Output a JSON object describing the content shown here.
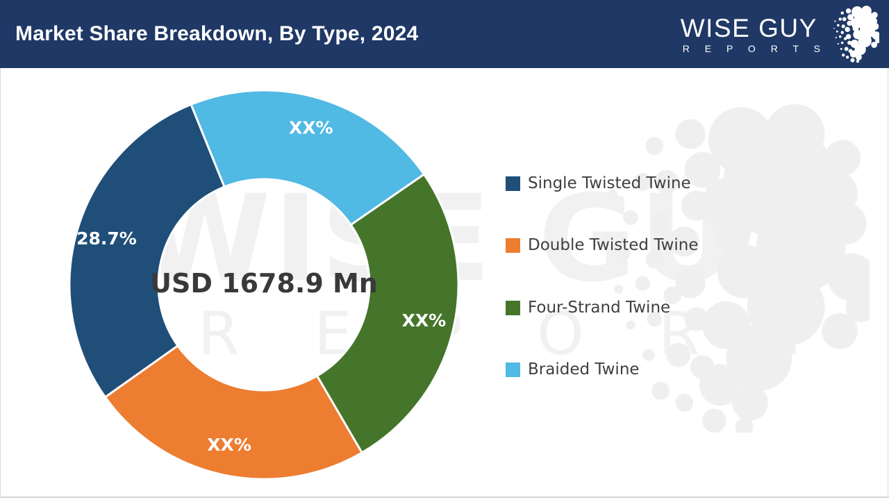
{
  "header": {
    "title": "Market Share Breakdown, By Type, 2024",
    "bg_color": "#1f3865",
    "logo": {
      "line1": "WISE GUY",
      "line2": "R E P O R T S"
    }
  },
  "watermark": {
    "line1": "WISE GUY",
    "line2": "R E P O R T S",
    "text_color": "#f1f1f1",
    "face_color": "#efefef"
  },
  "chart_data": {
    "type": "pie",
    "donut": true,
    "center_label": "USD 1678.9 Mn",
    "start_angle_deg": -22,
    "legend_position": "right",
    "slices": [
      {
        "label": "Single Twisted Twine",
        "display_value": "28.7%",
        "value": 28.7,
        "color": "#1f4e79"
      },
      {
        "label": "Double Twisted Twine",
        "display_value": "XX%",
        "value": 23.6,
        "color": "#ed7d31"
      },
      {
        "label": "Four-Strand Twine",
        "display_value": "XX%",
        "value": 26.2,
        "color": "#45752a"
      },
      {
        "label": "Braided Twine",
        "display_value": "XX%",
        "value": 21.5,
        "color": "#50b9e4"
      }
    ]
  }
}
